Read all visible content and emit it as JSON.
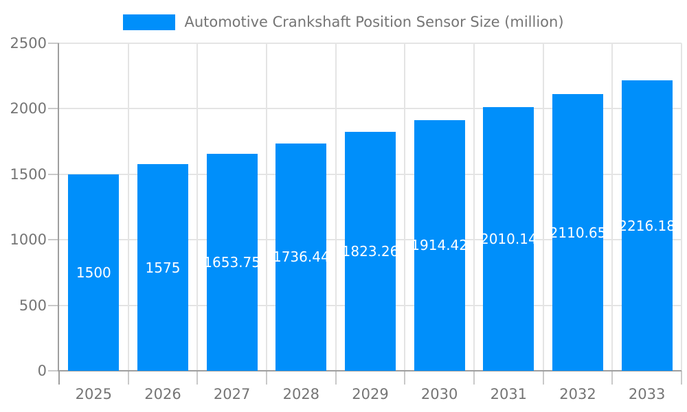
{
  "chart_data": {
    "type": "bar",
    "title": "Automotive Crankshaft Position Sensor Size (million)",
    "series_name": "Automotive Crankshaft Position Sensor Size (million)",
    "categories": [
      "2025",
      "2026",
      "2027",
      "2028",
      "2029",
      "2030",
      "2031",
      "2032",
      "2033"
    ],
    "values": [
      1500,
      1575,
      1653.75,
      1736.44,
      1823.26,
      1914.42,
      2010.14,
      2110.65,
      2216.18
    ],
    "value_labels": [
      "1500",
      "1575",
      "1653.75",
      "1736.44",
      "1823.26",
      "1914.42",
      "2010.14",
      "2110.65",
      "2216.18"
    ],
    "xlabel": "",
    "ylabel": "",
    "ylim": [
      0,
      2500
    ],
    "yticks": [
      0,
      500,
      1000,
      1500,
      2000,
      2500
    ],
    "grid": true,
    "legend_position": "top",
    "colors": {
      "bar": "#008FFA",
      "bar_label_text": "#FFFFFF",
      "axis_text": "#757575",
      "gridline": "#E4E4E4",
      "tick": "#C9C9C9",
      "axis_line": "#9E9E9E",
      "background": "#FFFFFF"
    }
  }
}
